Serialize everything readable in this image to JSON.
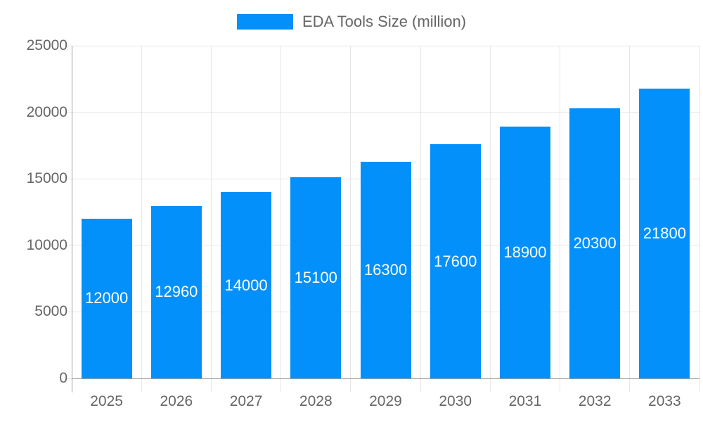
{
  "legend": {
    "items": [
      {
        "label": "EDA Tools Size (million)",
        "swatch_color": "#0390fa"
      }
    ]
  },
  "chart_data": {
    "type": "bar",
    "title": "",
    "categories": [
      "2025",
      "2026",
      "2027",
      "2028",
      "2029",
      "2030",
      "2031",
      "2032",
      "2033"
    ],
    "series": [
      {
        "name": "EDA Tools Size (million)",
        "color": "#0390fa",
        "values": [
          12000,
          12960,
          14000,
          15100,
          16300,
          17600,
          18900,
          20300,
          21800
        ]
      }
    ],
    "value_labels": {
      "visible": true,
      "position": "inside-center",
      "color": "#ffffff"
    },
    "xlabel": "",
    "ylabel": "",
    "ylim": [
      0,
      25000
    ],
    "yticks": [
      0,
      5000,
      10000,
      15000,
      20000,
      25000
    ],
    "grid": true,
    "legend_position": "top"
  },
  "colors": {
    "background": "#ffffff",
    "bar": "#0390fa",
    "grid": "#e6e6e6",
    "axis": "#9e9e9e",
    "axis_text": "#666666",
    "value_text": "#ffffff"
  }
}
